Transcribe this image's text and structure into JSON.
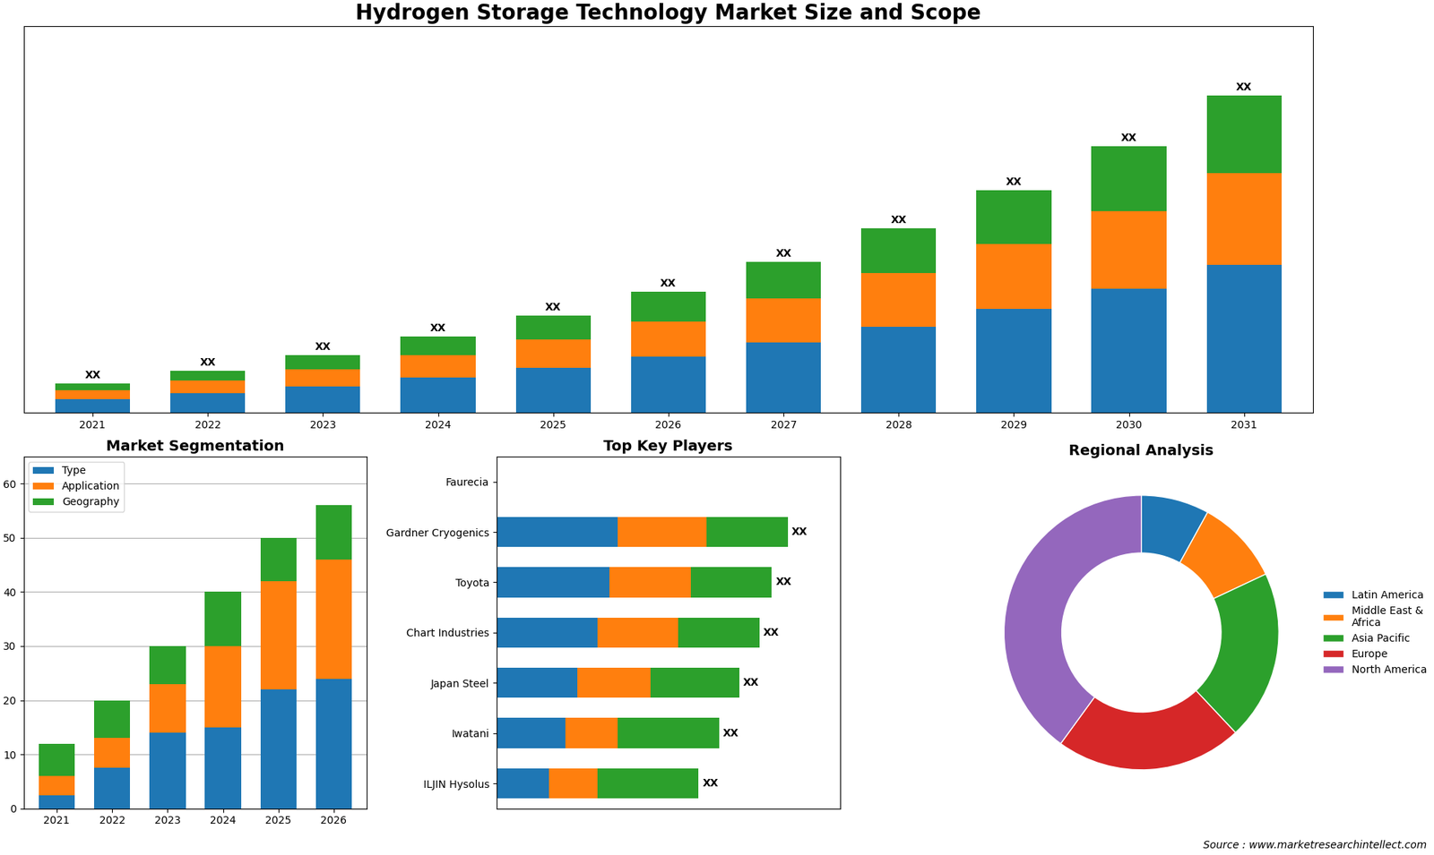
{
  "chart_data": [
    {
      "type": "bar",
      "title": "Hydrogen Storage Technology Market Size and Scope",
      "stacked": true,
      "data_labels": true,
      "tick_labels": "x",
      "categories": [
        "2021",
        "2022",
        "2023",
        "2024",
        "2025",
        "2026",
        "2027",
        "2028",
        "2029",
        "2030",
        "2031"
      ],
      "series": [
        {
          "values": [
            1.0,
            1.4,
            1.9,
            2.5,
            3.2,
            4.0,
            5.0,
            6.1,
            7.4,
            8.8,
            10.5
          ]
        },
        {
          "values": [
            0.6,
            0.9,
            1.2,
            1.6,
            2.0,
            2.5,
            3.1,
            3.8,
            4.6,
            5.5,
            6.5
          ]
        },
        {
          "values": [
            0.5,
            0.7,
            1.0,
            1.3,
            1.7,
            2.1,
            2.6,
            3.2,
            3.8,
            4.6,
            5.5
          ],
          "value_labels": [
            "XX",
            "XX",
            "XX",
            "XX",
            "XX",
            "XX",
            "XX",
            "XX",
            "XX",
            "XX",
            "XX"
          ]
        }
      ],
      "ylim": [
        0,
        27.45
      ]
    },
    {
      "type": "bar",
      "title": "Market Segmentation",
      "stacked": true,
      "grid": true,
      "legend": "upper left",
      "categories": [
        "2021",
        "2022",
        "2023",
        "2024",
        "2025",
        "2026"
      ],
      "series": [
        {
          "name": "Type",
          "values": [
            2.5,
            7.5,
            14,
            15,
            22,
            24
          ]
        },
        {
          "name": "Application",
          "values": [
            3.5,
            5.5,
            9,
            15,
            20,
            22
          ]
        },
        {
          "name": "Geography",
          "values": [
            6,
            7,
            7,
            10,
            8,
            10
          ]
        }
      ],
      "ylim": [
        0,
        65
      ],
      "yticks": [
        0,
        10,
        20,
        30,
        40,
        50,
        60
      ]
    },
    {
      "type": "bar",
      "title": "Top Key Players",
      "stacked": true,
      "orientation": "horizontal",
      "data_labels": true,
      "tick_labels": "y",
      "categories": [
        "Faurecia",
        "Gardner Cryogenics",
        "Toyota",
        "Chart Industries",
        "Japan Steel",
        "Iwatani",
        "ILJIN Hysolus"
      ],
      "series": [
        {
          "values": [
            0.0,
            0.3,
            0.28,
            0.25,
            0.2,
            0.17,
            0.13
          ]
        },
        {
          "values": [
            0.0,
            0.22,
            0.2,
            0.2,
            0.18,
            0.13,
            0.12
          ]
        },
        {
          "values": [
            0.0,
            0.2,
            0.2,
            0.2,
            0.22,
            0.25,
            0.25
          ],
          "value_labels": [
            null,
            "XX",
            "XX",
            "XX",
            "XX",
            "XX",
            "XX"
          ]
        }
      ],
      "xlim": [
        0,
        0.85
      ]
    },
    {
      "type": "pie",
      "title": "Regional Analysis",
      "legend": "center left",
      "categories": [
        "Latin America",
        "Middle East &\nAfrica",
        "Asia Pacific",
        "Europe",
        "North America"
      ],
      "values": [
        8,
        10,
        20,
        22,
        40
      ],
      "annotations": [
        "Source : www.marketresearchintellect.com"
      ]
    }
  ]
}
